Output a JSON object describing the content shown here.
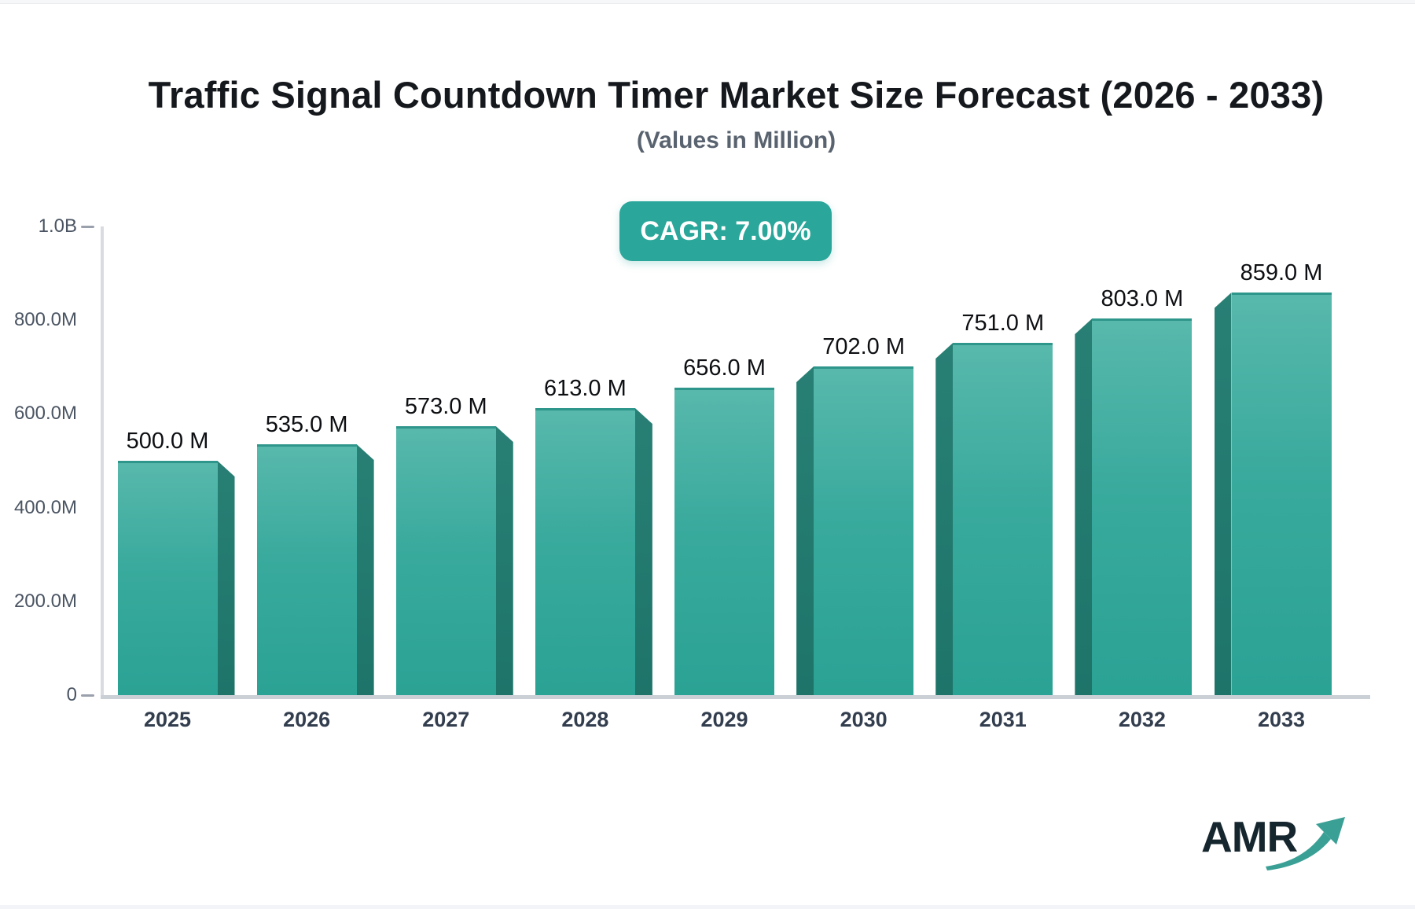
{
  "header": {
    "title": "Traffic Signal Countdown Timer Market Size Forecast (2026 - 2033)",
    "subtitle": "(Values in Million)",
    "cagr_badge": "CAGR: 7.00%"
  },
  "chart_data": {
    "type": "bar",
    "title": "Traffic Signal Countdown Timer Market Size Forecast (2026 - 2033)",
    "subtitle": "(Values in Million)",
    "annotation": "CAGR: 7.00%",
    "categories": [
      "2025",
      "2026",
      "2027",
      "2028",
      "2029",
      "2030",
      "2031",
      "2032",
      "2033"
    ],
    "values": [
      500.0,
      535.0,
      573.0,
      613.0,
      656.0,
      702.0,
      751.0,
      803.0,
      859.0
    ],
    "unit": "M",
    "value_labels": [
      "500.0 M",
      "535.0 M",
      "573.0 M",
      "613.0 M",
      "656.0 M",
      "702.0 M",
      "751.0 M",
      "803.0 M",
      "859.0 M"
    ],
    "xlabel": "",
    "ylabel": "",
    "ylim": [
      0,
      1000
    ],
    "y_ticks": [
      {
        "label": "1.0B",
        "value": 1000
      },
      {
        "label": "800.0M",
        "value": 800
      },
      {
        "label": "600.0M",
        "value": 600
      },
      {
        "label": "400.0M",
        "value": 400
      },
      {
        "label": "200.0M",
        "value": 200
      },
      {
        "label": "0",
        "value": 0
      }
    ],
    "grid": false,
    "legend": "none"
  },
  "colors": {
    "bar_face_top": "#58b8ac",
    "bar_face_bottom": "#2aa294",
    "bar_side_dark": "#217b70",
    "badge_background": "#2aa69a",
    "badge_text": "#ffffff",
    "axis_line": "#d9dbe0",
    "baseline": "#cbd0d7",
    "title_text": "#15181c",
    "subtitle_text": "#59636f",
    "axis_label_text": "#4a5462",
    "category_text": "#323d4e",
    "logo_text": "#16262e",
    "logo_arrow": "#3aa096"
  },
  "logo": {
    "text": "AMR",
    "arrow_icon": "trend-arrow-icon"
  }
}
